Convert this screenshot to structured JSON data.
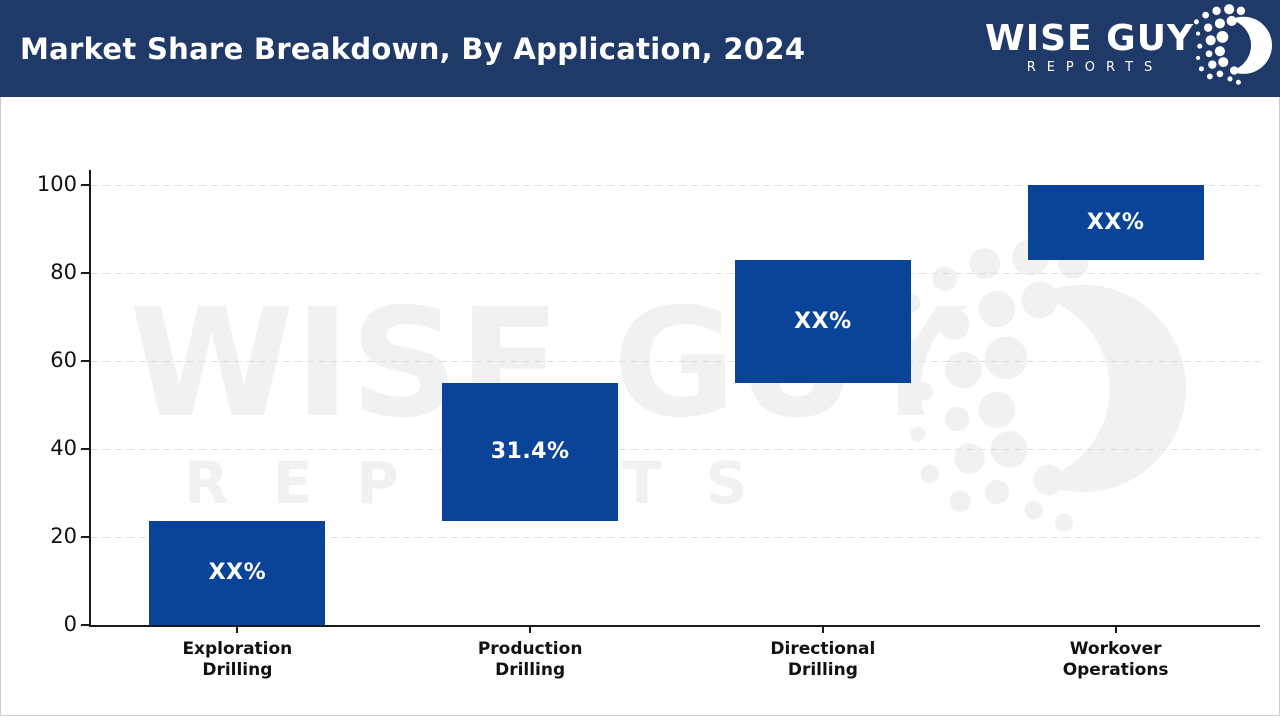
{
  "header": {
    "title": "Market Share Breakdown, By Application, 2024",
    "logo": {
      "wordmark": "WISE GUY",
      "subtext": "REPORTS"
    }
  },
  "watermark": {
    "wordmark": "WISE GUY",
    "subtext": "REPORTS"
  },
  "colors": {
    "header_bg": "#1f3a68",
    "bar": "#0a4499",
    "watermark": "#f1f1f1"
  },
  "chart_data": {
    "type": "bar",
    "subtype": "floating-waterfall",
    "title": "Market Share Breakdown, By Application, 2024",
    "categories": [
      "Exploration Drilling",
      "Production Drilling",
      "Directional Drilling",
      "Workover Operations"
    ],
    "segments": [
      {
        "category": "Exploration Drilling",
        "from": 0,
        "to": 23.7,
        "label": "XX%"
      },
      {
        "category": "Production Drilling",
        "from": 23.7,
        "to": 55.1,
        "label": "31.4%"
      },
      {
        "category": "Directional Drilling",
        "from": 55.1,
        "to": 82.9,
        "label": "XX%"
      },
      {
        "category": "Workover Operations",
        "from": 82.9,
        "to": 100,
        "label": "XX%"
      }
    ],
    "xlabel": "",
    "ylabel": "",
    "ylim": [
      0,
      100
    ],
    "yticks": [
      0,
      20,
      40,
      60,
      80,
      100
    ],
    "grid": "horizontal-dashed",
    "legend": "none"
  }
}
